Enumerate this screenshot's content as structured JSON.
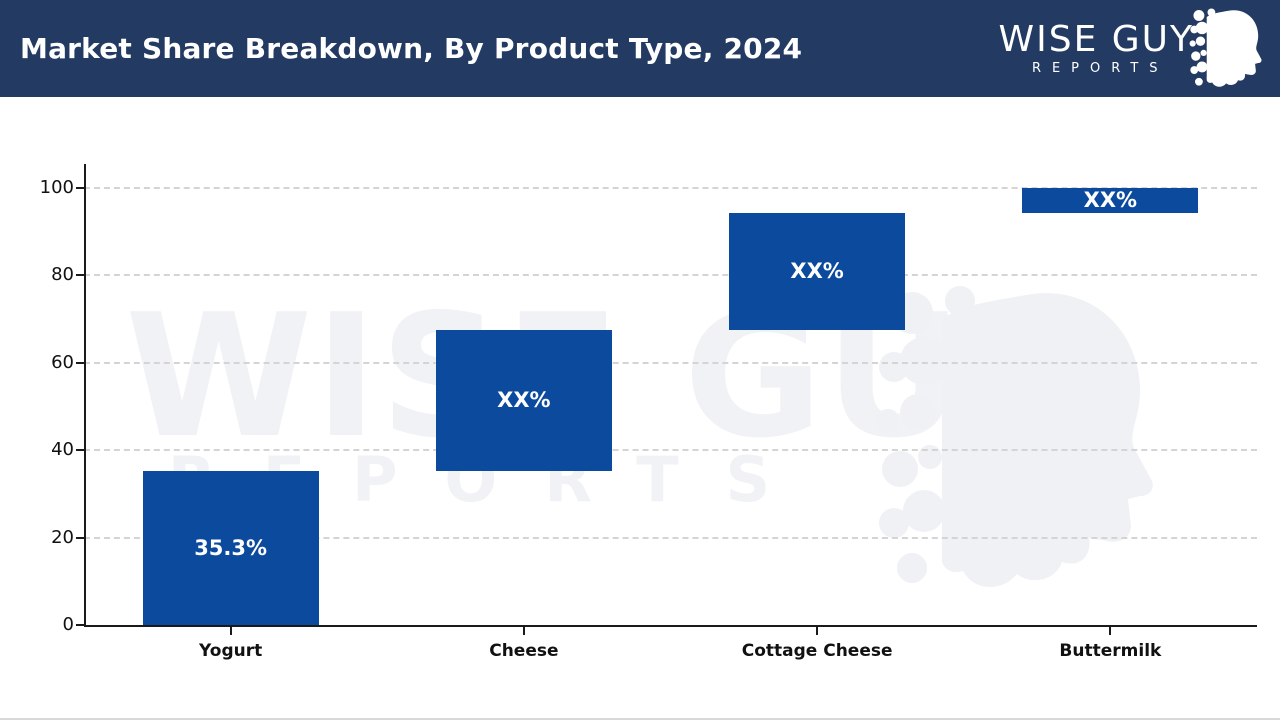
{
  "header": {
    "title": "Market Share Breakdown, By Product Type, 2024",
    "logo": {
      "line1": "WISE GUY",
      "line2": "REPORTS"
    }
  },
  "watermark": {
    "line1": "WISE GUY",
    "line2": "REPORTS"
  },
  "chart_data": {
    "type": "bar",
    "subtype": "stepped-breakdown-waterfall",
    "title": "Market Share Breakdown, By Product Type, 2024",
    "categories": [
      "Yogurt",
      "Cheese",
      "Cottage Cheese",
      "Buttermilk"
    ],
    "series": [
      {
        "category": "Yogurt",
        "start": 0,
        "end": 35.3,
        "label": "35.3%"
      },
      {
        "category": "Cheese",
        "start": 35.3,
        "end": 67.6,
        "label": "XX%"
      },
      {
        "category": "Cottage Cheese",
        "start": 67.6,
        "end": 94.3,
        "label": "XX%"
      },
      {
        "category": "Buttermilk",
        "start": 94.3,
        "end": 100,
        "label": "XX%"
      }
    ],
    "xlabel": "",
    "ylabel": "",
    "y_ticks": [
      0,
      20,
      40,
      60,
      80,
      100
    ],
    "ylim": [
      0,
      105.5
    ],
    "grid": "horizontal-dashed",
    "legend": "none",
    "colors": {
      "bar": "#0b4a9d",
      "bar_label": "#ffffff",
      "grid": "#d4d4d4",
      "axis": "#1a1a1a",
      "header_bg": "#233a63",
      "watermark": "#f1f2f5"
    }
  }
}
